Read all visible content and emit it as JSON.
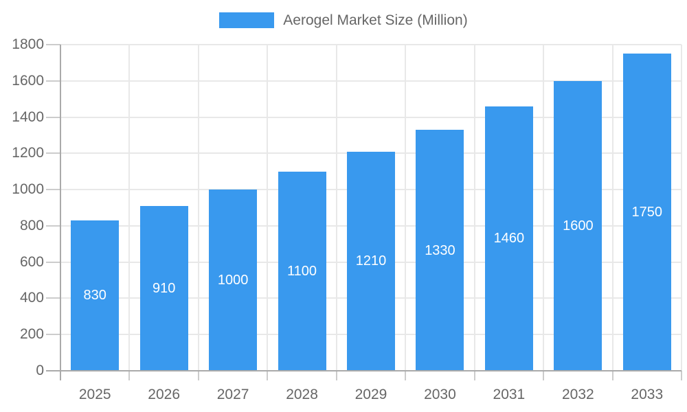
{
  "chart_data": {
    "type": "bar",
    "title": "Aerogel Market Size (Million)",
    "legend": {
      "position": "top",
      "entries": [
        "Aerogel Market Size (Million)"
      ]
    },
    "categories": [
      "2025",
      "2026",
      "2027",
      "2028",
      "2029",
      "2030",
      "2031",
      "2032",
      "2033"
    ],
    "series": [
      {
        "name": "Aerogel Market Size (Million)",
        "values": [
          830,
          910,
          1000,
          1100,
          1210,
          1330,
          1460,
          1600,
          1750
        ]
      }
    ],
    "xlabel": "",
    "ylabel": "",
    "ylim": [
      0,
      1800
    ],
    "yticks": [
      0,
      200,
      400,
      600,
      800,
      1000,
      1200,
      1400,
      1600,
      1800
    ],
    "grid": true,
    "value_labels": "inside-center",
    "colors": {
      "bar": "#3999EE",
      "value_label": "#FFFFFF",
      "axis_text": "#666666",
      "legend_text": "#666666",
      "axis_line": "#AAAAAA",
      "gridline": "#E8E8E8",
      "tick": "#CCCCCC",
      "background": "#FFFFFF"
    }
  }
}
